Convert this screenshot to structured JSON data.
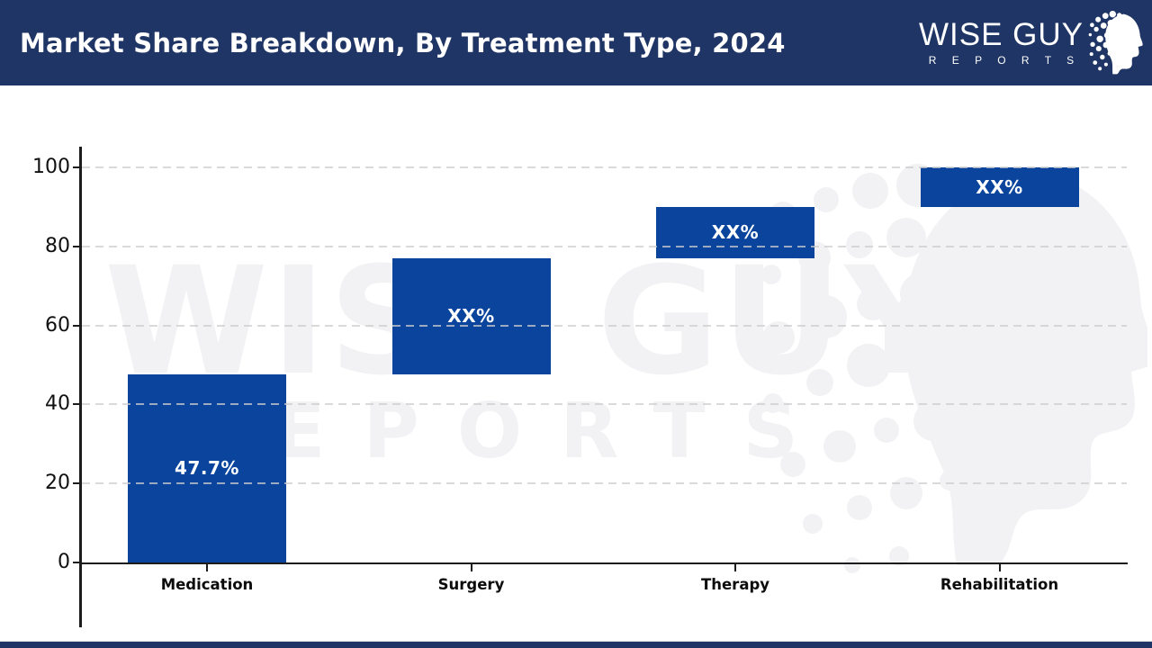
{
  "header": {
    "title": "Market Share Breakdown, By Treatment Type, 2024",
    "logo": {
      "line1": "WISE GUY",
      "line2": "R E P O R T S"
    }
  },
  "watermark": {
    "line1": "WISE GUY",
    "line2": "REPORTS"
  },
  "colors": {
    "header_bg": "#1f3565",
    "footer_bg": "#1f3565",
    "bar": "#0a449c",
    "grid_line": "#d9d9d9",
    "axis": "#1c1c1c",
    "bar_label_text": "#ffffff",
    "watermark": "#f2f2f4"
  },
  "chart_data": {
    "type": "bar",
    "subtype": "waterfall",
    "title": "Market Share Breakdown, By Treatment Type, 2024",
    "categories": [
      "Medication",
      "Surgery",
      "Therapy",
      "Rehabilitation"
    ],
    "segments": [
      {
        "category": "Medication",
        "start": 0,
        "end": 47.7,
        "label": "47.7%"
      },
      {
        "category": "Surgery",
        "start": 47.7,
        "end": 77,
        "label": "XX%"
      },
      {
        "category": "Therapy",
        "start": 77,
        "end": 90,
        "label": "XX%"
      },
      {
        "category": "Rehabilitation",
        "start": 90,
        "end": 100,
        "label": "XX%"
      }
    ],
    "xlabel": "",
    "ylabel": "",
    "ylim": [
      0,
      100
    ],
    "yticks": [
      0,
      20,
      40,
      60,
      80,
      100
    ],
    "grid": "horizontal-dashed",
    "legend": false,
    "bar_color": "#0a449c"
  }
}
